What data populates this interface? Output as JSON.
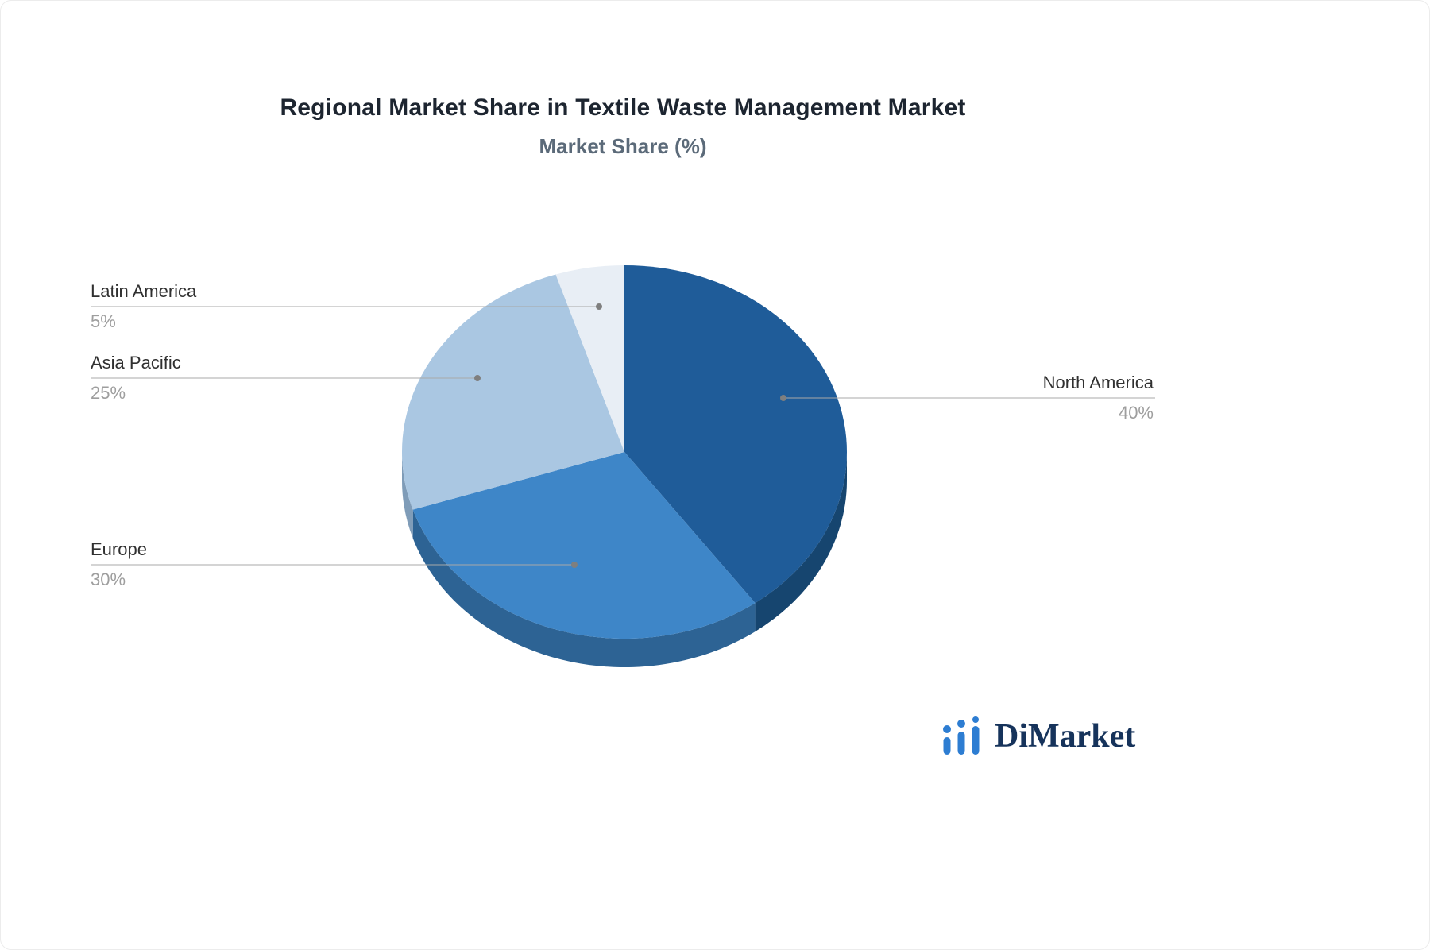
{
  "chart_data": {
    "type": "pie",
    "title": "Regional Market Share in Textile Waste Management Market",
    "subtitle": "Market Share (%)",
    "unit": "%",
    "style": "3d",
    "start_angle_deg": 0,
    "direction": "clockwise",
    "legend_position": "none",
    "leader_line_color": "#a8a8a8",
    "marker_color": "#7f7f7f",
    "series": [
      {
        "name": "North America",
        "value": 40,
        "percent_label": "40%",
        "color": "#1f5c99",
        "side_color": "#16456f"
      },
      {
        "name": "Europe",
        "value": 30,
        "percent_label": "30%",
        "color": "#3e86c8",
        "side_color": "#2d6394"
      },
      {
        "name": "Asia Pacific",
        "value": 25,
        "percent_label": "25%",
        "color": "#aac7e2",
        "side_color": "#7f9cb8"
      },
      {
        "name": "Latin America",
        "value": 5,
        "percent_label": "5%",
        "color": "#e8eef5",
        "side_color": "#bac6d4"
      }
    ]
  },
  "branding": {
    "logo_text": "DiMarket",
    "logo_text_color": "#16335b",
    "logo_icon": "bar-chart-icon",
    "logo_icon_color": "#2d7dd2"
  }
}
